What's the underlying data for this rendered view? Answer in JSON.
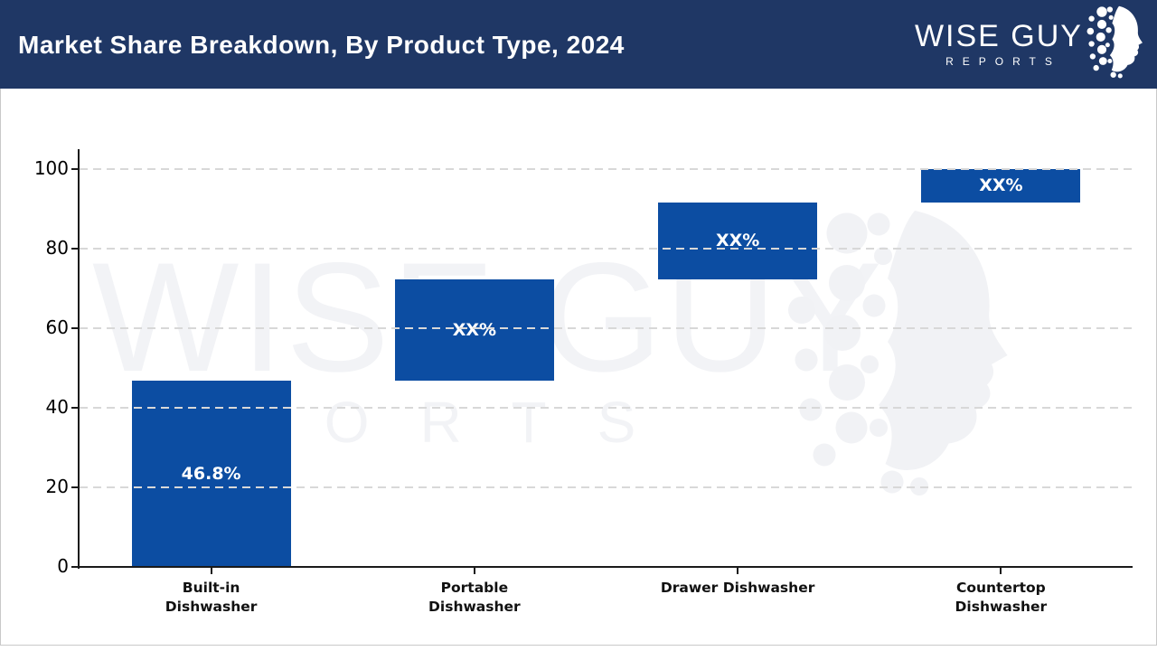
{
  "header": {
    "title": "Market Share Breakdown, By Product Type, 2024",
    "bg_color": "#1f3765",
    "brand": {
      "line1": "WISE GUY",
      "line2": "REPORTS"
    }
  },
  "watermark": {
    "line1": "WISE GUY",
    "line2": "PORTS"
  },
  "chart_data": {
    "type": "bar",
    "subtype": "waterfall",
    "title": "Market Share Breakdown, By Product Type, 2024",
    "categories": [
      "Built-in\nDishwasher",
      "Portable\nDishwasher",
      "Drawer Dishwasher",
      "Countertop\nDishwasher"
    ],
    "segments": [
      {
        "category": "Built-in Dishwasher",
        "label": "46.8%",
        "start": 0,
        "end": 46.8
      },
      {
        "category": "Portable Dishwasher",
        "label": "XX%",
        "start": 46.8,
        "end": 72.3
      },
      {
        "category": "Drawer Dishwasher",
        "label": "XX%",
        "start": 72.3,
        "end": 91.6
      },
      {
        "category": "Countertop Dishwasher",
        "label": "XX%",
        "start": 91.6,
        "end": 100
      }
    ],
    "xlabel": "",
    "ylabel": "",
    "ylim": [
      0,
      105
    ],
    "yticks": [
      0,
      20,
      40,
      60,
      80,
      100
    ],
    "grid": "horizontal-dashed",
    "grid_over_bars": true,
    "bar_color": "#0c4da2",
    "value_label_color": "#ffffff",
    "axis_color": "#1a1a1a"
  }
}
